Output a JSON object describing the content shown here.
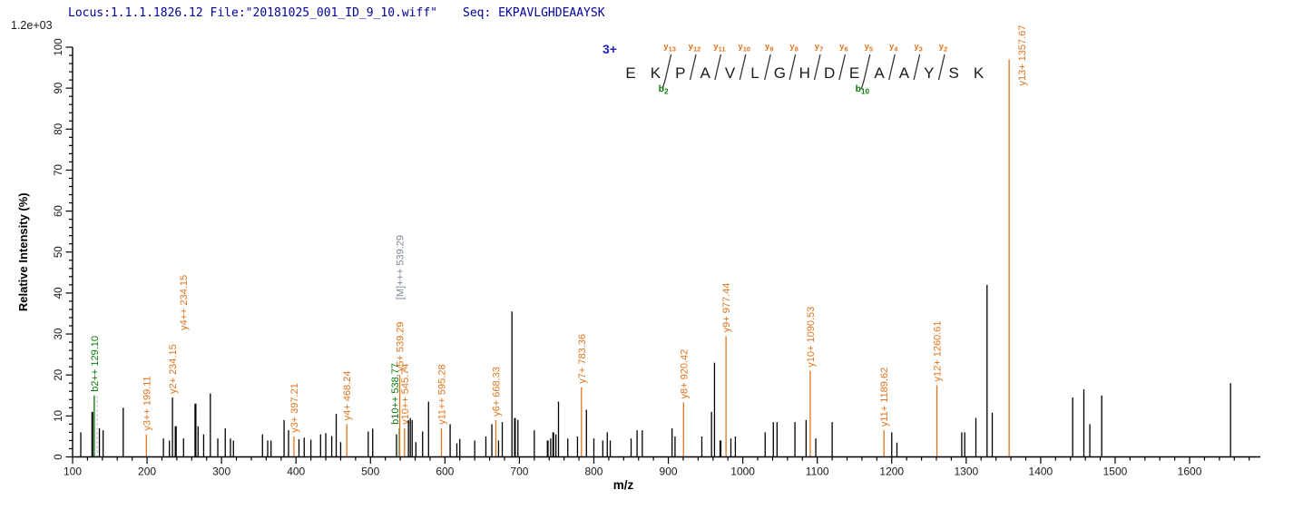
{
  "header": {
    "locus_file": "Locus:1.1.1.1826.12 File:\"20181025_001_ID_9_10.wiff\"",
    "seq": "Seq: EKPAVLGHDEAAYSK"
  },
  "colors": {
    "header_text": "#000099",
    "charge": "#2323cc",
    "y_ion": "#e0751e",
    "b_ion": "#0a7a0a",
    "precursor": "#7d8896",
    "peak": "#000000",
    "dash": "#b5b5b5",
    "axis": "#000000",
    "residue": "#1a1a1a"
  },
  "sequence_panel": {
    "charge": "3+",
    "residues": [
      "E",
      "K",
      "P",
      "A",
      "V",
      "L",
      "G",
      "H",
      "D",
      "E",
      "A",
      "A",
      "Y",
      "S",
      "K"
    ],
    "cleavages": [
      {
        "after": 1,
        "y": "y13",
        "b": "b2"
      },
      {
        "after": 2,
        "y": "y12"
      },
      {
        "after": 3,
        "y": "y11"
      },
      {
        "after": 4,
        "y": "y10"
      },
      {
        "after": 5,
        "y": "y9"
      },
      {
        "after": 6,
        "y": "y8"
      },
      {
        "after": 7,
        "y": "y7"
      },
      {
        "after": 8,
        "y": "y6"
      },
      {
        "after": 9,
        "y": "y5",
        "b": "b10"
      },
      {
        "after": 10,
        "y": "y4"
      },
      {
        "after": 11,
        "y": "y3"
      },
      {
        "after": 12,
        "y": "y2"
      }
    ]
  },
  "chart_data": {
    "type": "bar",
    "subtype": "ms2-centroid-mass-spectrum",
    "title": "",
    "xlabel": "m/z",
    "ylabel": "Relative  Intensity (%)",
    "y_scale_note": "1.2e+03",
    "xlim": [
      100,
      1695
    ],
    "ylim": [
      0,
      100
    ],
    "x_major_ticks": [
      100,
      200,
      300,
      400,
      500,
      600,
      700,
      800,
      900,
      1000,
      1100,
      1200,
      1300,
      1400,
      1500,
      1600
    ],
    "x_minor_step": 20,
    "y_major_ticks": [
      0,
      10,
      20,
      30,
      40,
      50,
      60,
      70,
      80,
      90,
      100
    ],
    "y_minor_step": 2,
    "grid": false,
    "legend": false,
    "peaks": [
      {
        "mz": 111,
        "i": 6
      },
      {
        "mz": 126.5,
        "i": 11,
        "w": 2
      },
      {
        "mz": 129.1,
        "i": 15,
        "t": "b",
        "labels": [
          {
            "text": "b2++ 129.10",
            "color": "b_ion"
          }
        ]
      },
      {
        "mz": 133,
        "i": 15.5,
        "t": "dash"
      },
      {
        "mz": 136,
        "i": 7
      },
      {
        "mz": 141,
        "i": 6.5
      },
      {
        "mz": 168,
        "i": 12
      },
      {
        "mz": 199.11,
        "i": 5.5,
        "t": "y",
        "labels": [
          {
            "text": "y3++ 199.11"
          }
        ]
      },
      {
        "mz": 222,
        "i": 4.5
      },
      {
        "mz": 230,
        "i": 4
      },
      {
        "mz": 234.15,
        "i": 14.5,
        "labels": [
          {
            "text": "y2+ 234.15"
          },
          {
            "text": "y4++ 234.15",
            "dx": 12,
            "dy": -70
          }
        ]
      },
      {
        "mz": 238.5,
        "i": 7.5,
        "w": 2.2
      },
      {
        "mz": 249,
        "i": 4.5
      },
      {
        "mz": 265,
        "i": 13,
        "w": 2.2
      },
      {
        "mz": 268.5,
        "i": 7.5
      },
      {
        "mz": 276,
        "i": 5.5
      },
      {
        "mz": 285,
        "i": 15.5
      },
      {
        "mz": 295,
        "i": 4.5
      },
      {
        "mz": 305,
        "i": 7
      },
      {
        "mz": 312,
        "i": 4.5
      },
      {
        "mz": 316,
        "i": 4
      },
      {
        "mz": 355,
        "i": 5.5
      },
      {
        "mz": 362,
        "i": 4
      },
      {
        "mz": 366.5,
        "i": 4
      },
      {
        "mz": 384,
        "i": 9
      },
      {
        "mz": 390,
        "i": 6.5
      },
      {
        "mz": 397.21,
        "i": 5,
        "t": "y",
        "labels": [
          {
            "text": "y3+ 397.21"
          }
        ]
      },
      {
        "mz": 404,
        "i": 4.3
      },
      {
        "mz": 411,
        "i": 4.7
      },
      {
        "mz": 420,
        "i": 4.2
      },
      {
        "mz": 433,
        "i": 5.5
      },
      {
        "mz": 440,
        "i": 5.8
      },
      {
        "mz": 448,
        "i": 5.1
      },
      {
        "mz": 454,
        "i": 10.5
      },
      {
        "mz": 460,
        "i": 3.6
      },
      {
        "mz": 468.24,
        "i": 8,
        "t": "y",
        "labels": [
          {
            "text": "y4+ 468.24"
          }
        ]
      },
      {
        "mz": 497,
        "i": 6.2
      },
      {
        "mz": 503,
        "i": 6.9
      },
      {
        "mz": 535,
        "i": 5.5
      },
      {
        "mz": 538.77,
        "i": 7,
        "t": "b",
        "labels": [
          {
            "text": "b10++ 538.77",
            "color": "b_ion",
            "dx": -5
          }
        ]
      },
      {
        "mz": 539.29,
        "i": 20,
        "t": "y",
        "labels": [
          {
            "text": "y5+ 539.29"
          },
          {
            "text": "[M]+++ 539.29",
            "color": "precursor",
            "dy": -79
          }
        ]
      },
      {
        "mz": 545.74,
        "i": 7,
        "t": "y",
        "labels": [
          {
            "text": "y10++ 545.74"
          }
        ]
      },
      {
        "mz": 551,
        "i": 9
      },
      {
        "mz": 553.5,
        "i": 9.5
      },
      {
        "mz": 556,
        "i": 9
      },
      {
        "mz": 561,
        "i": 3.6
      },
      {
        "mz": 570,
        "i": 6.2
      },
      {
        "mz": 578,
        "i": 13.5
      },
      {
        "mz": 595.28,
        "i": 7,
        "t": "y",
        "labels": [
          {
            "text": "y11++ 595.28"
          }
        ]
      },
      {
        "mz": 607,
        "i": 8
      },
      {
        "mz": 616,
        "i": 3.3
      },
      {
        "mz": 620,
        "i": 4.4
      },
      {
        "mz": 640,
        "i": 4
      },
      {
        "mz": 655,
        "i": 5
      },
      {
        "mz": 663,
        "i": 8
      },
      {
        "mz": 668.33,
        "i": 9,
        "t": "y",
        "labels": [
          {
            "text": "y6+ 668.33"
          }
        ]
      },
      {
        "mz": 672,
        "i": 4
      },
      {
        "mz": 677,
        "i": 8.5
      },
      {
        "mz": 690,
        "i": 35.5
      },
      {
        "mz": 694,
        "i": 9.5,
        "w": 2
      },
      {
        "mz": 698,
        "i": 9
      },
      {
        "mz": 720,
        "i": 6.5
      },
      {
        "mz": 738,
        "i": 4,
        "w": 2
      },
      {
        "mz": 742,
        "i": 4.5
      },
      {
        "mz": 745.5,
        "i": 6,
        "w": 2
      },
      {
        "mz": 749,
        "i": 5.5
      },
      {
        "mz": 752.5,
        "i": 13.5
      },
      {
        "mz": 765,
        "i": 4.5
      },
      {
        "mz": 778,
        "i": 5
      },
      {
        "mz": 783.36,
        "i": 17,
        "t": "y",
        "labels": [
          {
            "text": "y7+ 783.36"
          }
        ]
      },
      {
        "mz": 790,
        "i": 11.5
      },
      {
        "mz": 800,
        "i": 4.5
      },
      {
        "mz": 812,
        "i": 4
      },
      {
        "mz": 818,
        "i": 6
      },
      {
        "mz": 822,
        "i": 4
      },
      {
        "mz": 850,
        "i": 4.5
      },
      {
        "mz": 858,
        "i": 6.5
      },
      {
        "mz": 865,
        "i": 6.5
      },
      {
        "mz": 905,
        "i": 7
      },
      {
        "mz": 909,
        "i": 5
      },
      {
        "mz": 920.42,
        "i": 13.3,
        "t": "y",
        "labels": [
          {
            "text": "y8+ 920.42"
          }
        ]
      },
      {
        "mz": 945,
        "i": 5
      },
      {
        "mz": 958,
        "i": 11
      },
      {
        "mz": 962,
        "i": 23
      },
      {
        "mz": 970,
        "i": 4,
        "w": 2.2
      },
      {
        "mz": 977.44,
        "i": 29.5,
        "t": "y",
        "labels": [
          {
            "text": "y9+ 977.44"
          }
        ]
      },
      {
        "mz": 984,
        "i": 4.5
      },
      {
        "mz": 990,
        "i": 5
      },
      {
        "mz": 1030,
        "i": 6
      },
      {
        "mz": 1041,
        "i": 8.5
      },
      {
        "mz": 1046,
        "i": 8.5
      },
      {
        "mz": 1070,
        "i": 8.5
      },
      {
        "mz": 1085,
        "i": 9
      },
      {
        "mz": 1090.53,
        "i": 21,
        "t": "y",
        "labels": [
          {
            "text": "y10+ 1090.53"
          }
        ]
      },
      {
        "mz": 1098,
        "i": 4.5
      },
      {
        "mz": 1120,
        "i": 8.5
      },
      {
        "mz": 1189.62,
        "i": 6.5,
        "t": "y",
        "labels": [
          {
            "text": "y11+ 1189.62"
          }
        ]
      },
      {
        "mz": 1200,
        "i": 6
      },
      {
        "mz": 1207,
        "i": 3.5
      },
      {
        "mz": 1260.61,
        "i": 17.5,
        "t": "y",
        "labels": [
          {
            "text": "y12+ 1260.61"
          }
        ]
      },
      {
        "mz": 1294,
        "i": 6
      },
      {
        "mz": 1298,
        "i": 6
      },
      {
        "mz": 1313,
        "i": 9.5
      },
      {
        "mz": 1328,
        "i": 42
      },
      {
        "mz": 1335,
        "i": 10.8
      },
      {
        "mz": 1357.67,
        "i": 97,
        "t": "y",
        "labels": [
          {
            "text": "y13+ 1357.67",
            "dx": 14,
            "dy": 33
          }
        ]
      },
      {
        "mz": 1443,
        "i": 14.5
      },
      {
        "mz": 1458,
        "i": 16.5
      },
      {
        "mz": 1466,
        "i": 8
      },
      {
        "mz": 1482,
        "i": 15
      },
      {
        "mz": 1655,
        "i": 18
      }
    ]
  }
}
